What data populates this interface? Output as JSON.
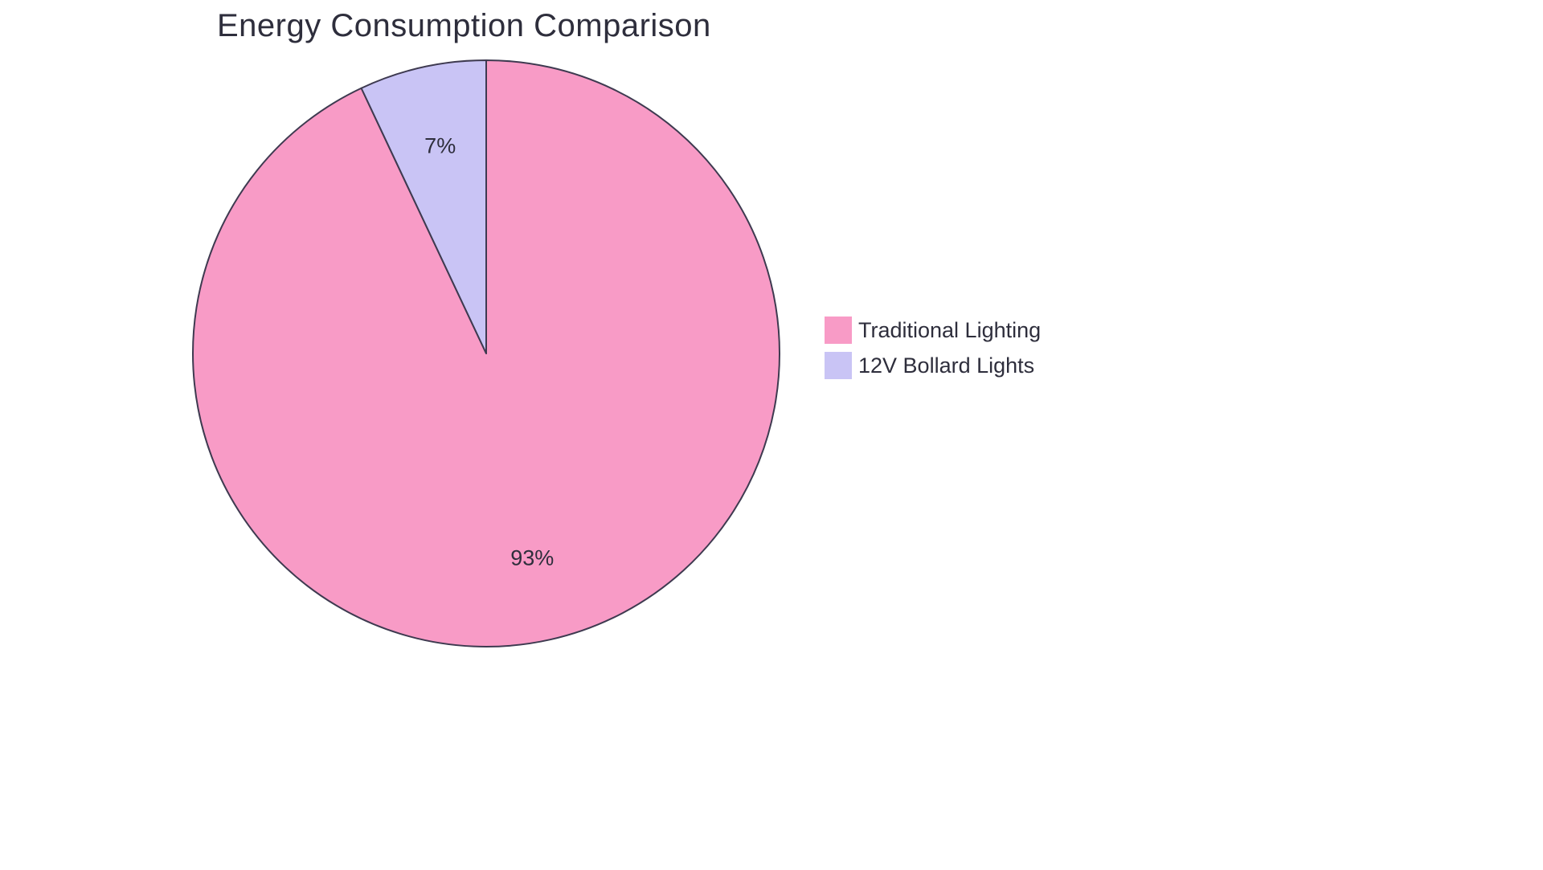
{
  "chart_data": {
    "type": "pie",
    "title": "Energy Consumption Comparison",
    "legend_position": "right",
    "direction": "clockwise",
    "start_angle_deg": -90,
    "series": [
      {
        "label": "Traditional Lighting",
        "value": 93,
        "percent_label": "93%",
        "color": "#F89BC6"
      },
      {
        "label": "12V Bollard Lights",
        "value": 7,
        "percent_label": "7%",
        "color": "#C9C4F5"
      }
    ],
    "slice_border_color": "#3E3A50",
    "label_color": "#2E2E3C",
    "title_color": "#2E2E3C"
  }
}
